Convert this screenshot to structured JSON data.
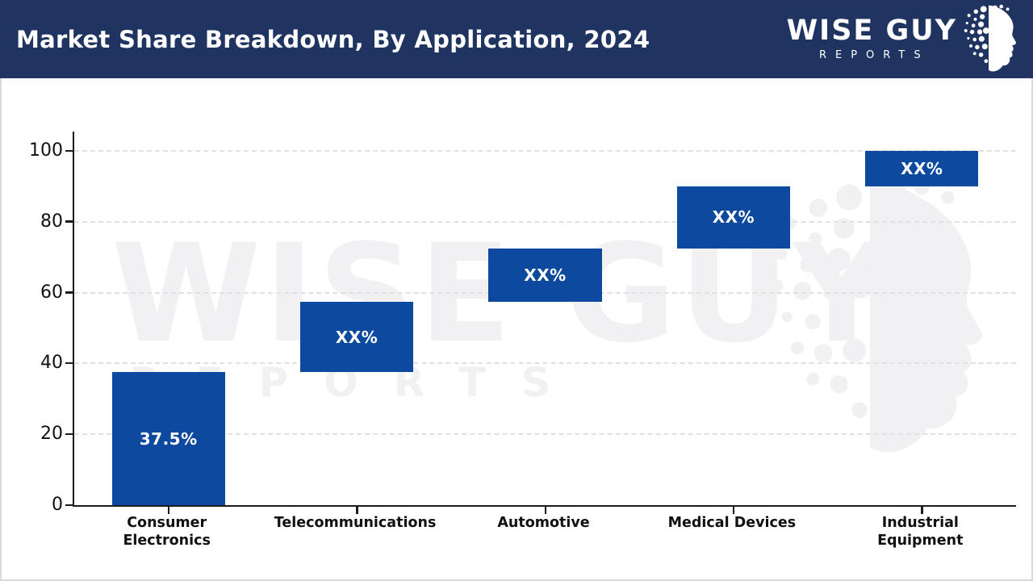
{
  "header": {
    "title": "Market Share Breakdown, By Application, 2024",
    "bg_color": "#203462",
    "logo": {
      "line1": "WISE GUY",
      "line2": "REPORTS"
    }
  },
  "watermark": {
    "line1": "WISE GUY",
    "line2": "REPORTS"
  },
  "chart_data": {
    "type": "bar",
    "subtype": "waterfall-cumulative",
    "title": "Market Share Breakdown, By Application, 2024",
    "categories": [
      "Consumer Electronics",
      "Telecommunications",
      "Automotive",
      "Medical Devices",
      "Industrial Equipment"
    ],
    "category_display_lines": [
      [
        "Consumer",
        "Electronics"
      ],
      [
        "Telecommunications"
      ],
      [
        "Automotive"
      ],
      [
        "Medical Devices"
      ],
      [
        "Industrial",
        "Equipment"
      ]
    ],
    "bar_labels": [
      "37.5%",
      "XX%",
      "XX%",
      "XX%",
      "XX%"
    ],
    "bar_start": [
      0,
      37.5,
      57.5,
      72.5,
      90
    ],
    "bar_end": [
      37.5,
      57.5,
      72.5,
      90,
      100
    ],
    "segment_values": [
      37.5,
      20,
      15,
      17.5,
      10
    ],
    "yticks": [
      0,
      20,
      40,
      60,
      80,
      100
    ],
    "ylim": [
      0,
      100
    ],
    "grid": true,
    "grid_style": "dashed",
    "legend": false,
    "bar_color": "#0d499e",
    "bar_label_color": "#ffffff",
    "axis_color": "#1c1c1c"
  }
}
